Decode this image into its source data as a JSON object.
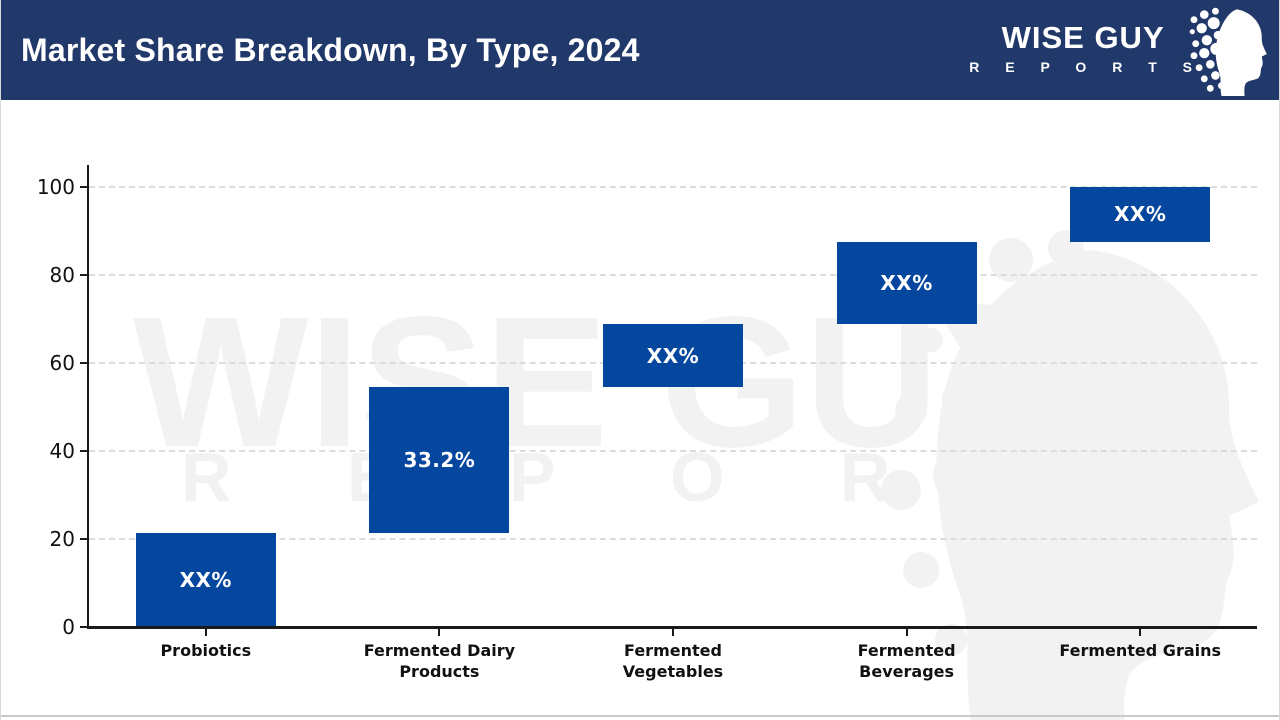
{
  "header": {
    "title": "Market Share Breakdown, By Type, 2024",
    "bg_color": "#21386a",
    "logo": {
      "line1": "WISE GUY",
      "line2": "R E P O R T S"
    }
  },
  "watermark": {
    "line1": "WISE GUY",
    "line2": "R E P O R T S"
  },
  "chart_data": {
    "type": "waterfall",
    "title": "Market Share Breakdown, By Type, 2024",
    "categories": [
      "Probiotics",
      "Fermented Dairy Products",
      "Fermented Vegetables",
      "Fermented Beverages",
      "Fermented Grains"
    ],
    "category_lines": [
      [
        "Probiotics"
      ],
      [
        "Fermented Dairy",
        "Products"
      ],
      [
        "Fermented",
        "Vegetables"
      ],
      [
        "Fermented",
        "Beverages"
      ],
      [
        "Fermented Grains"
      ]
    ],
    "values": [
      21.3,
      33.2,
      14.4,
      18.7,
      12.4
    ],
    "starts": [
      0,
      21.3,
      54.5,
      68.9,
      87.6
    ],
    "ends": [
      21.3,
      54.5,
      68.9,
      87.6,
      100
    ],
    "bar_labels": [
      "XX%",
      "33.2%",
      "XX%",
      "XX%",
      "XX%"
    ],
    "bar_color": "#05479e",
    "bar_label_color": "#ffffff",
    "axis_color": "#1a1a1a",
    "grid_color": "#dcdcdc",
    "grid": "horizontal-dashed",
    "legend": "none",
    "xlabel": "",
    "ylabel": "",
    "ylim": [
      0,
      100
    ],
    "yticks": [
      0,
      20,
      40,
      60,
      80,
      100
    ]
  }
}
